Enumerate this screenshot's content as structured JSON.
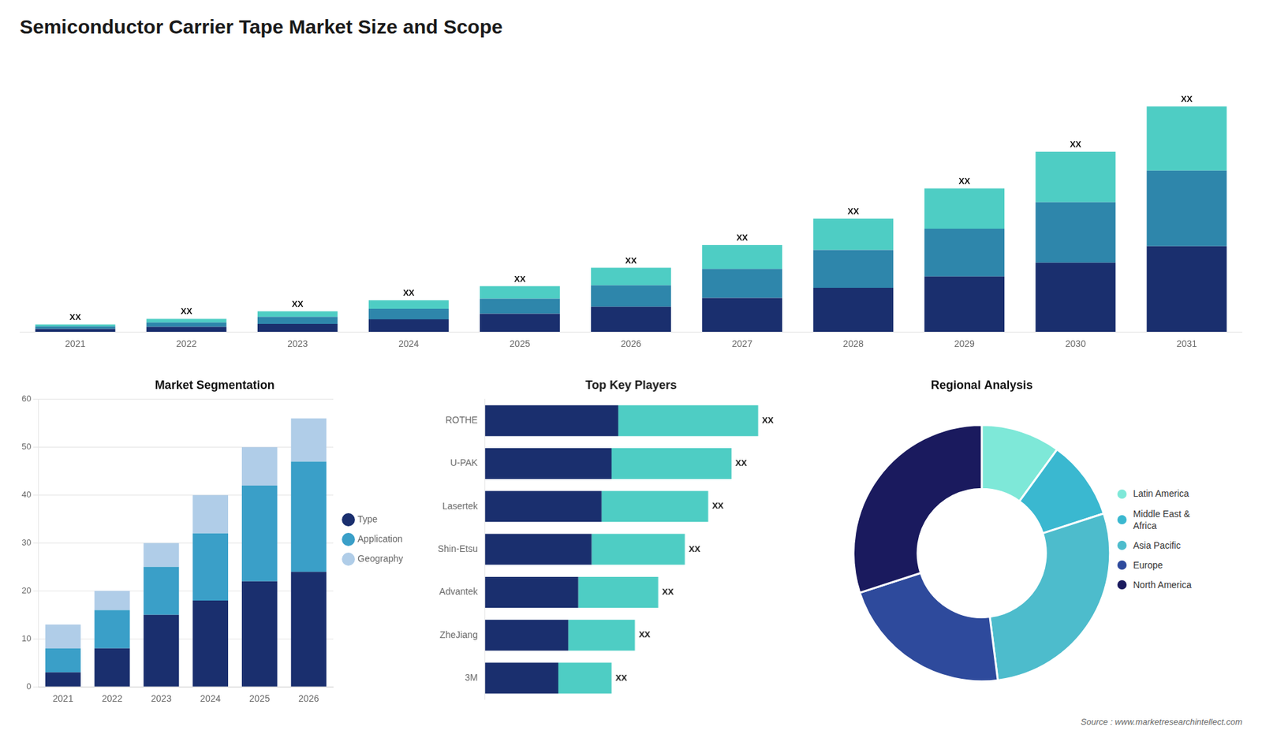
{
  "title": "Semiconductor Carrier Tape Market Size and Scope",
  "annotations": [
    "Source : www.marketresearchintellect.com"
  ],
  "chart_data": [
    {
      "type": "bar",
      "stacked": true,
      "categories": [
        "2021",
        "2022",
        "2023",
        "2024",
        "2025",
        "2026",
        "2027",
        "2028",
        "2029",
        "2030",
        "2031"
      ],
      "series": [
        {
          "color": "#1a2f6e",
          "values": [
            1.2,
            2.0,
            3.2,
            5.0,
            7.2,
            10.0,
            13.5,
            17.5,
            22.0,
            27.5,
            34.0
          ]
        },
        {
          "color": "#2e86ab",
          "values": [
            1.0,
            1.8,
            2.8,
            4.2,
            6.0,
            8.5,
            11.5,
            15.0,
            19.0,
            24.0,
            30.0
          ]
        },
        {
          "color": "#4ecdc4",
          "values": [
            0.8,
            1.4,
            2.2,
            3.4,
            5.0,
            7.0,
            9.5,
            12.5,
            16.0,
            20.0,
            25.5
          ]
        }
      ],
      "ylim": [
        0,
        114.56
      ],
      "tick_labels": "x",
      "grid": false,
      "annotations": [
        {
          "x": "2021",
          "text": "XX"
        },
        {
          "x": "2022",
          "text": "XX"
        },
        {
          "x": "2023",
          "text": "XX"
        },
        {
          "x": "2024",
          "text": "XX"
        },
        {
          "x": "2025",
          "text": "XX"
        },
        {
          "x": "2026",
          "text": "XX"
        },
        {
          "x": "2027",
          "text": "XX"
        },
        {
          "x": "2028",
          "text": "XX"
        },
        {
          "x": "2029",
          "text": "XX"
        },
        {
          "x": "2030",
          "text": "XX"
        },
        {
          "x": "2031",
          "text": "XX"
        }
      ]
    },
    {
      "type": "bar",
      "title": "Market Segmentation",
      "stacked": true,
      "categories": [
        "2021",
        "2022",
        "2023",
        "2024",
        "2025",
        "2026"
      ],
      "series": [
        {
          "name": "Type",
          "color": "#1a2f6e",
          "values": [
            3,
            8,
            15,
            18,
            22,
            24
          ]
        },
        {
          "name": "Application",
          "color": "#3a9fc8",
          "values": [
            5,
            8,
            10,
            14,
            20,
            23
          ]
        },
        {
          "name": "Geography",
          "color": "#b0cde8",
          "values": [
            5,
            4,
            5,
            8,
            8,
            9
          ]
        }
      ],
      "ylim": [
        0,
        60
      ],
      "yticks": [
        0,
        10,
        20,
        30,
        40,
        50,
        60
      ],
      "grid": true,
      "legend": "right"
    },
    {
      "type": "bar",
      "title": "Top Key Players",
      "orientation": "horizontal",
      "stacked": true,
      "categories": [
        "ROTHE",
        "U-PAK",
        "Lasertek",
        "Shin-Etsu",
        "Advantek",
        "ZheJiang",
        "3M"
      ],
      "series": [
        {
          "color": "#1a2f6e",
          "values": [
            0.4,
            0.38,
            0.35,
            0.32,
            0.28,
            0.25,
            0.22
          ]
        },
        {
          "color": "#4ecdc4",
          "values": [
            0.42,
            0.36,
            0.32,
            0.28,
            0.24,
            0.2,
            0.16
          ]
        }
      ],
      "xlim": [
        0,
        1.025
      ],
      "tick_labels": "y",
      "grid": false,
      "annotations": [
        {
          "y": "ROTHE",
          "text": "XX"
        },
        {
          "y": "U-PAK",
          "text": "XX"
        },
        {
          "y": "Lasertek",
          "text": "XX"
        },
        {
          "y": "Shin-Etsu",
          "text": "XX"
        },
        {
          "y": "Advantek",
          "text": "XX"
        },
        {
          "y": "ZheJiang",
          "text": "XX"
        },
        {
          "y": "3M",
          "text": "XX"
        }
      ]
    },
    {
      "type": "doughnut",
      "title": "Regional Analysis",
      "categories": [
        "Latin America",
        "Middle East &\nAfrica",
        "Asia Pacific",
        "Europe",
        "North America"
      ],
      "values": [
        0.1,
        0.1,
        0.28,
        0.22,
        0.3
      ],
      "colors": [
        "#7ee8d8",
        "#3ab8d0",
        "#4dbccc",
        "#2e4a9c",
        "#1a1a5e"
      ],
      "legend": "right"
    }
  ]
}
